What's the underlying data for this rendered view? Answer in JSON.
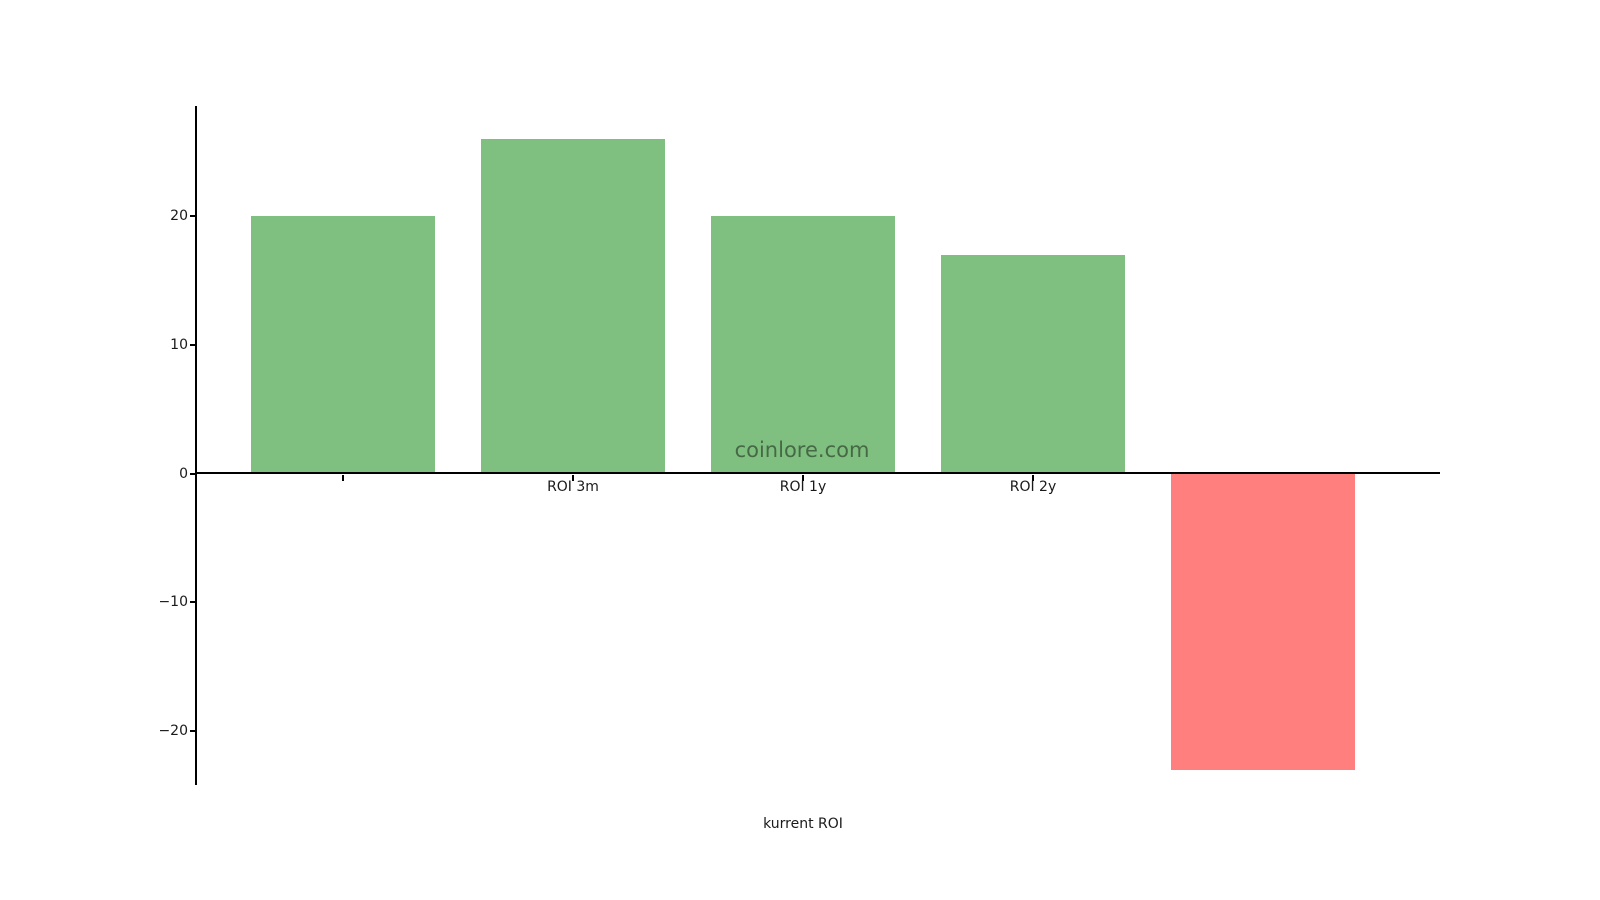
{
  "watermark": "coinlore.com",
  "chart_data": {
    "type": "bar",
    "categories": [
      "",
      "ROI 3m",
      "ROI 1y",
      "ROI 2y",
      ""
    ],
    "values": [
      20,
      26,
      20,
      17,
      -23
    ],
    "title": "",
    "xlabel": "kurrent ROI",
    "ylabel": "",
    "ylim": [
      -24.2,
      28.5
    ],
    "yticks": [
      20,
      10,
      0,
      -10,
      -20
    ],
    "ytick_labels": [
      "20",
      "10",
      "0",
      "−10",
      "−20"
    ],
    "xtick_visible": [
      true,
      true,
      true,
      true,
      false
    ],
    "grid": false,
    "legend": null,
    "colors": {
      "positive_bar": "#7fbf7f",
      "negative_bar": "#ff7f7f",
      "axis": "#000000",
      "watermark_text": "rgba(0,0,0,0.45)"
    }
  }
}
